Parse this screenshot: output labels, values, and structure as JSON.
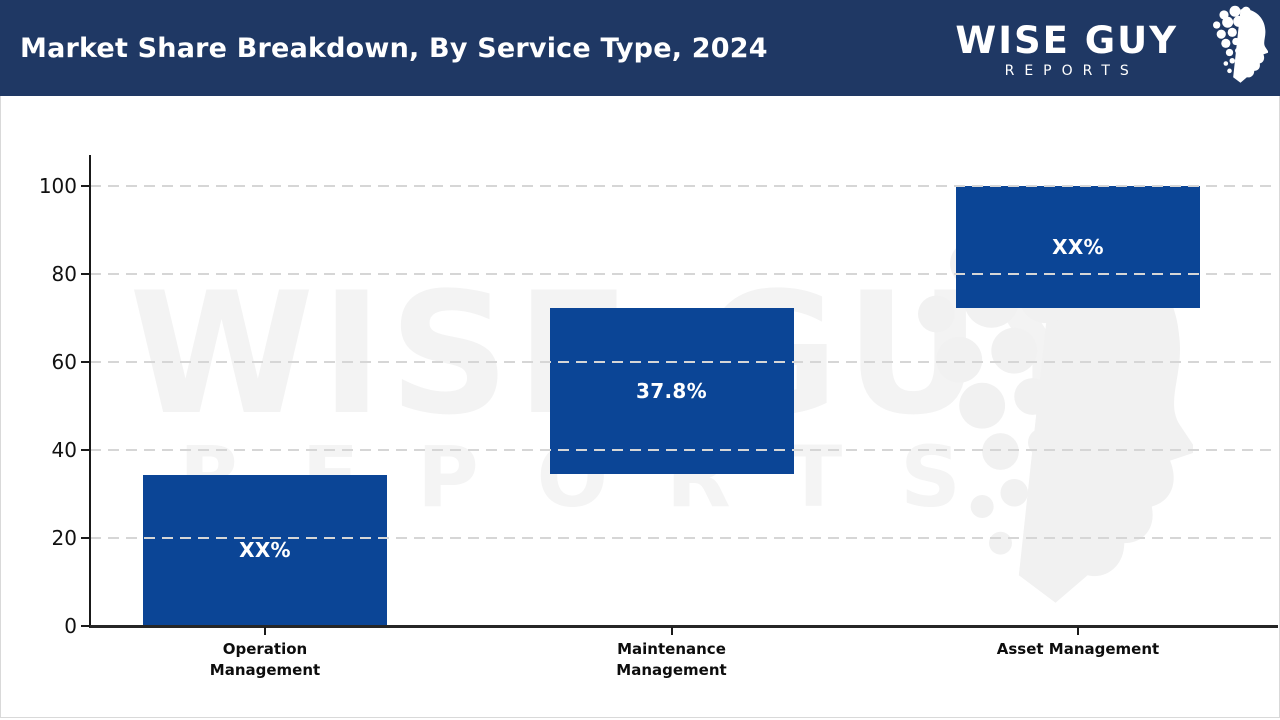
{
  "page": {
    "background": "#ffffff",
    "border_color": "#d9d9d9"
  },
  "header": {
    "background_color": "#1f3864",
    "title": "Market Share Breakdown, By Service Type, 2024",
    "brand": {
      "wordmark": "WISE GUY",
      "subtext": "REPORTS"
    }
  },
  "watermark": {
    "wordmark": "WISE GUY",
    "subtext": "REPORTS"
  },
  "chart_data": {
    "type": "bar",
    "variant": "floating-waterfall",
    "title": "Market Share Breakdown, By Service Type, 2024",
    "categories": [
      "Operation Management",
      "Maintenance Management",
      "Asset Management"
    ],
    "x_tick_label_lines": [
      [
        "Operation",
        "Management"
      ],
      [
        "Maintenance",
        "Management"
      ],
      [
        "Asset Management"
      ]
    ],
    "segments": [
      {
        "category": "Operation Management",
        "base": 0,
        "top": 34.4,
        "label": "XX%"
      },
      {
        "category": "Maintenance Management",
        "base": 34.5,
        "top": 72.3,
        "label": "37.8%"
      },
      {
        "category": "Asset Management",
        "base": 72.3,
        "top": 100,
        "label": "XX%"
      }
    ],
    "yticks": [
      0,
      20,
      40,
      60,
      80,
      100
    ],
    "ylim": [
      0,
      105
    ],
    "xlabel": "",
    "ylabel": "",
    "bar_color": "#0b4596",
    "bar_label_color": "#ffffff",
    "grid": {
      "axis": "y",
      "style": "dashed",
      "color": "#d6d6d6"
    },
    "axis_color": "#1a1a1a",
    "legend": "none"
  }
}
